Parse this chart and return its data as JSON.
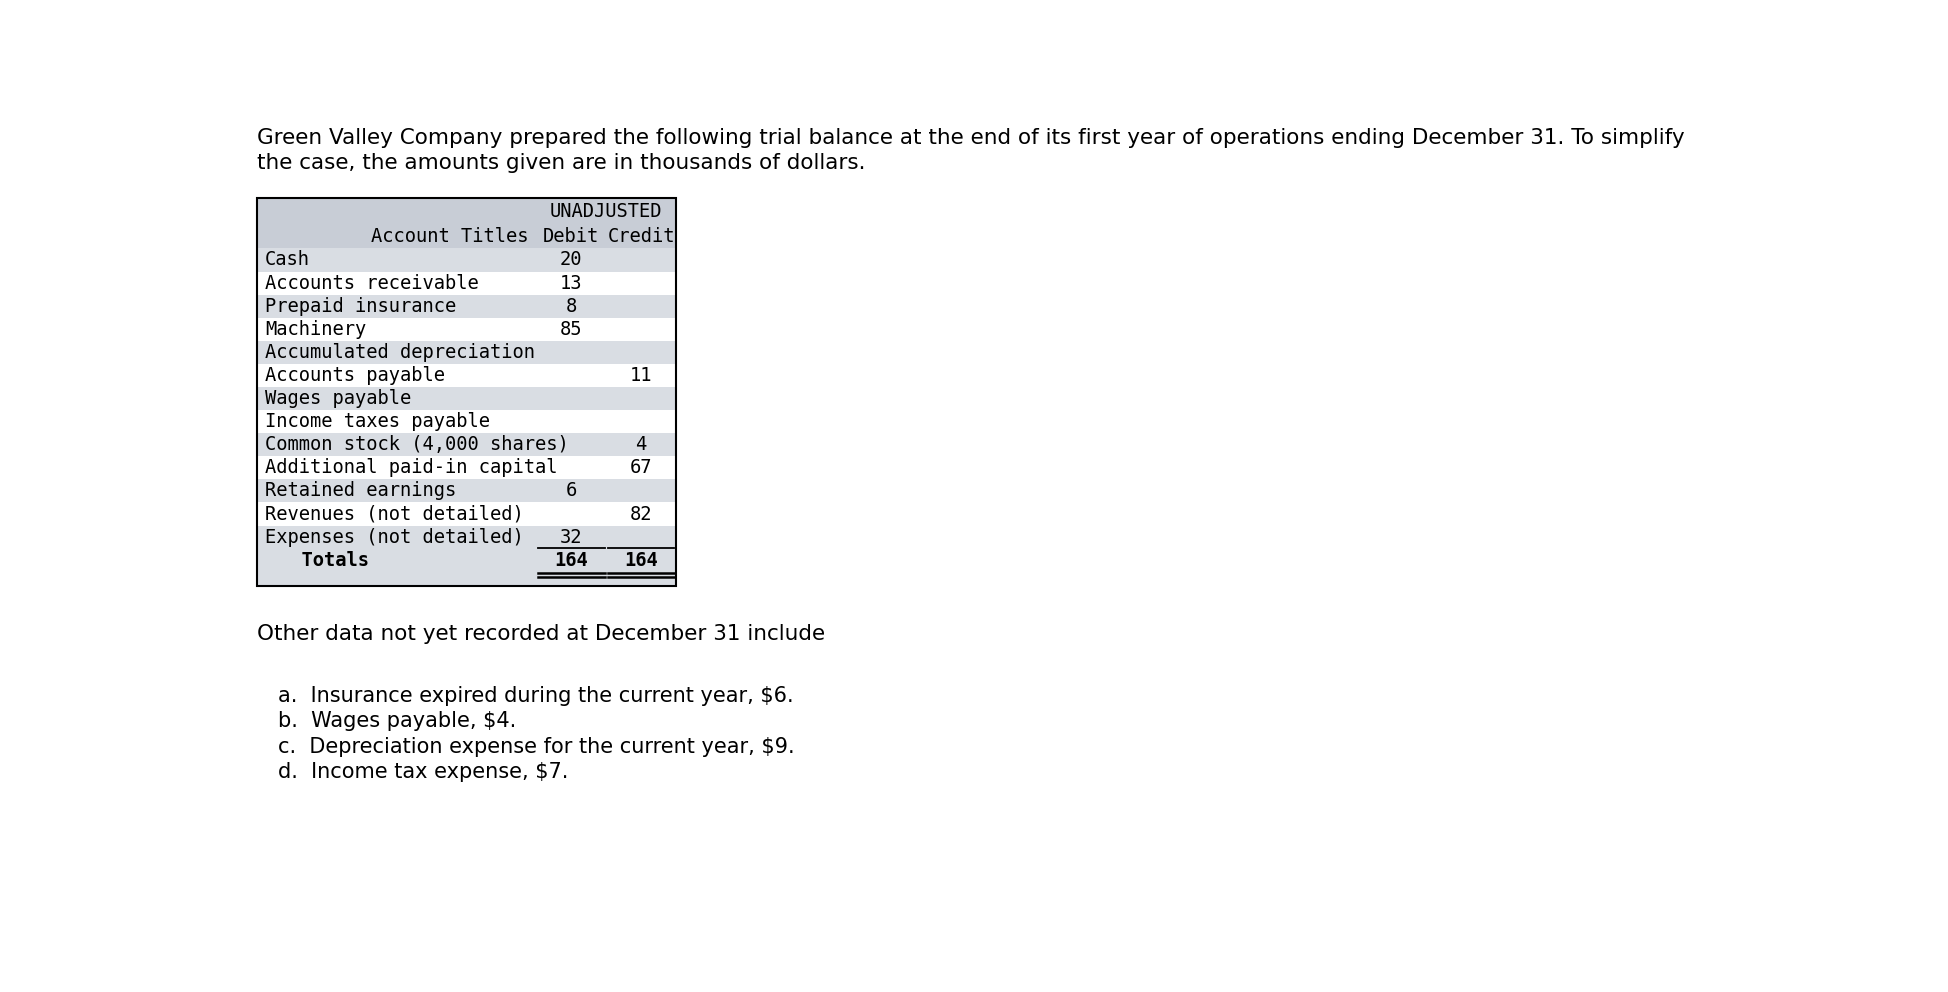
{
  "title_line1": "Green Valley Company prepared the following trial balance at the end of its first year of operations ending December 31. To simplify",
  "title_line2": "the case, the amounts given are in thousands of dollars.",
  "header_row1": "UNADJUSTED",
  "header_col1": "Account Titles",
  "header_col2": "Debit",
  "header_col3": "Credit",
  "rows": [
    {
      "account": "Cash",
      "debit": "20",
      "credit": ""
    },
    {
      "account": "Accounts receivable",
      "debit": "13",
      "credit": ""
    },
    {
      "account": "Prepaid insurance",
      "debit": "8",
      "credit": ""
    },
    {
      "account": "Machinery",
      "debit": "85",
      "credit": ""
    },
    {
      "account": "Accumulated depreciation",
      "debit": "",
      "credit": ""
    },
    {
      "account": "Accounts payable",
      "debit": "",
      "credit": "11"
    },
    {
      "account": "Wages payable",
      "debit": "",
      "credit": ""
    },
    {
      "account": "Income taxes payable",
      "debit": "",
      "credit": ""
    },
    {
      "account": "Common stock (4,000 shares)",
      "debit": "",
      "credit": "4"
    },
    {
      "account": "Additional paid-in capital",
      "debit": "",
      "credit": "67"
    },
    {
      "account": "Retained earnings",
      "debit": "6",
      "credit": ""
    },
    {
      "account": "Revenues (not detailed)",
      "debit": "",
      "credit": "82"
    },
    {
      "account": "Expenses (not detailed)",
      "debit": "32",
      "credit": ""
    }
  ],
  "totals_label": "  Totals",
  "totals_debit": "164",
  "totals_credit": "164",
  "other_data_title": "Other data not yet recorded at December 31 include",
  "bullet_items": [
    "a.  Insurance expired during the current year, $6.",
    "b.  Wages payable, $4.",
    "c.  Depreciation expense for the current year, $9.",
    "d.  Income tax expense, $7."
  ],
  "table_bg_light": "#d9dde3",
  "table_bg_white": "#ffffff",
  "header_bg": "#c8cdd6",
  "border_color": "#000000",
  "text_color": "#000000",
  "font_size_title": 15.5,
  "font_size_table": 13.5,
  "font_size_other": 15.5,
  "font_size_bullets": 15.0,
  "monospace_font": "DejaVu Sans Mono"
}
